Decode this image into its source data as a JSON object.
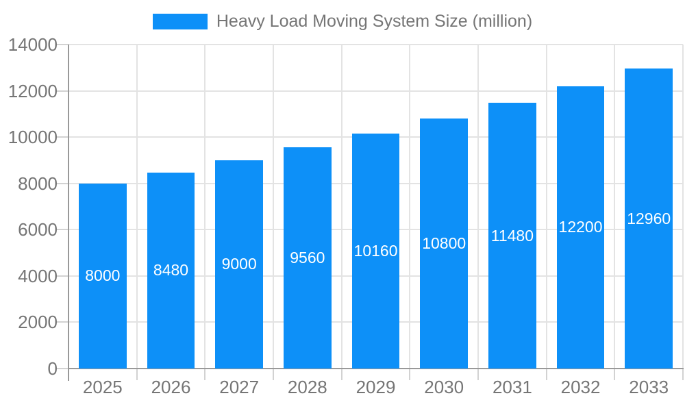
{
  "legend": {
    "label": "Heavy Load Moving System Size (million)"
  },
  "colors": {
    "bar": "#0d90f8",
    "grid": "#e3e3e3",
    "tick": "#d2d2d2",
    "axis": "#999999",
    "axis_text": "#757575",
    "bar_label": "#ffffff",
    "background": "#ffffff"
  },
  "chart_data": {
    "type": "bar",
    "title": "Heavy Load Moving System Size (million)",
    "categories": [
      "2025",
      "2026",
      "2027",
      "2028",
      "2029",
      "2030",
      "2031",
      "2032",
      "2033"
    ],
    "values": [
      8000,
      8480,
      9000,
      9560,
      10160,
      10800,
      11480,
      12200,
      12960
    ],
    "xlabel": "",
    "ylabel": "",
    "ylim": [
      0,
      14000
    ],
    "yticks": [
      0,
      2000,
      4000,
      6000,
      8000,
      10000,
      12000,
      14000
    ],
    "grid": true,
    "legend_position": "top",
    "bar_label_position": "center",
    "bar_label_color": "#ffffff"
  }
}
